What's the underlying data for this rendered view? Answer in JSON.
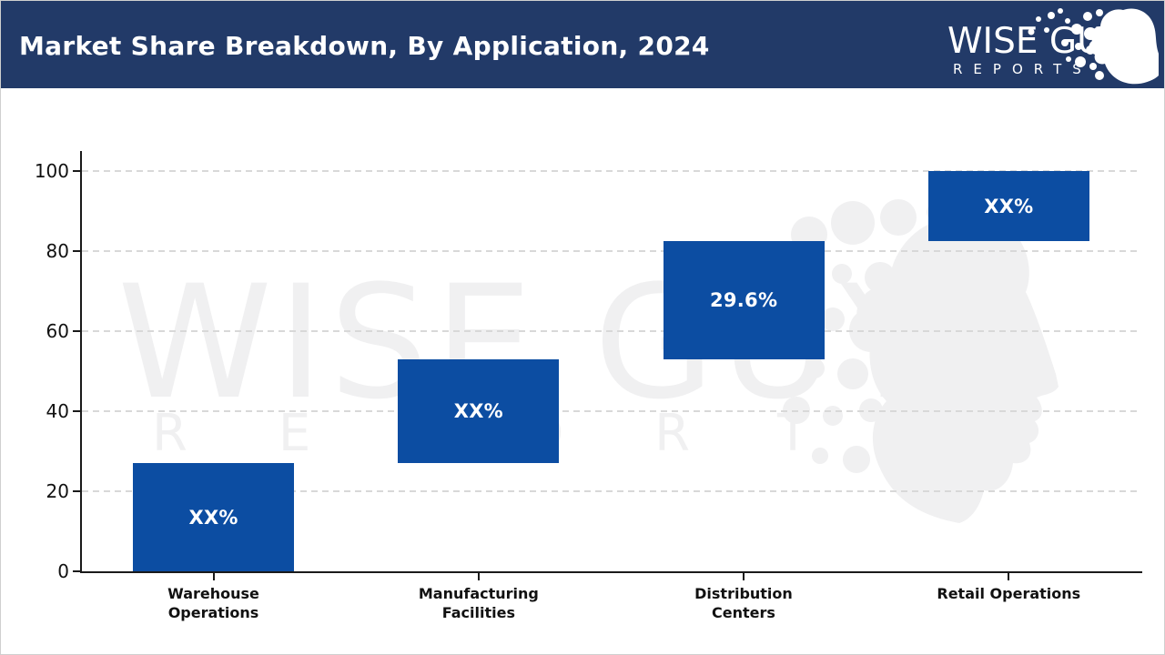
{
  "header": {
    "title": "Market Share Breakdown, By Application, 2024",
    "logo_primary": "WISE GUY",
    "logo_secondary": "REPORTS"
  },
  "watermark": {
    "primary": "WISE GUY",
    "secondary": "REPORTS"
  },
  "colors": {
    "header_bg": "#223a68",
    "bar": "#0c4da2",
    "grid": "#d8d8d8",
    "axis": "#1a1a1a",
    "watermark": "#f0f0f1",
    "bar_label": "#ffffff"
  },
  "chart_data": {
    "type": "bar",
    "subtype": "floating-waterfall",
    "title": "Market Share Breakdown, By Application, 2024",
    "categories": [
      [
        "Warehouse",
        "Operations"
      ],
      [
        "Manufacturing",
        "Facilities"
      ],
      [
        "Distribution",
        "Centers"
      ],
      [
        "Retail Operations"
      ]
    ],
    "segments": [
      {
        "category": "Warehouse Operations",
        "start": 0,
        "end": 27,
        "label": "XX%"
      },
      {
        "category": "Manufacturing Facilities",
        "start": 27,
        "end": 52.9,
        "label": "XX%"
      },
      {
        "category": "Distribution Centers",
        "start": 52.9,
        "end": 82.5,
        "label": "29.6%"
      },
      {
        "category": "Retail Operations",
        "start": 82.5,
        "end": 100,
        "label": "XX%"
      }
    ],
    "yticks": [
      0,
      20,
      40,
      60,
      80,
      100
    ],
    "ylim": [
      0,
      105
    ],
    "xlabel": "",
    "ylabel": "",
    "grid": "horizontal-dashed",
    "legend": "none"
  }
}
